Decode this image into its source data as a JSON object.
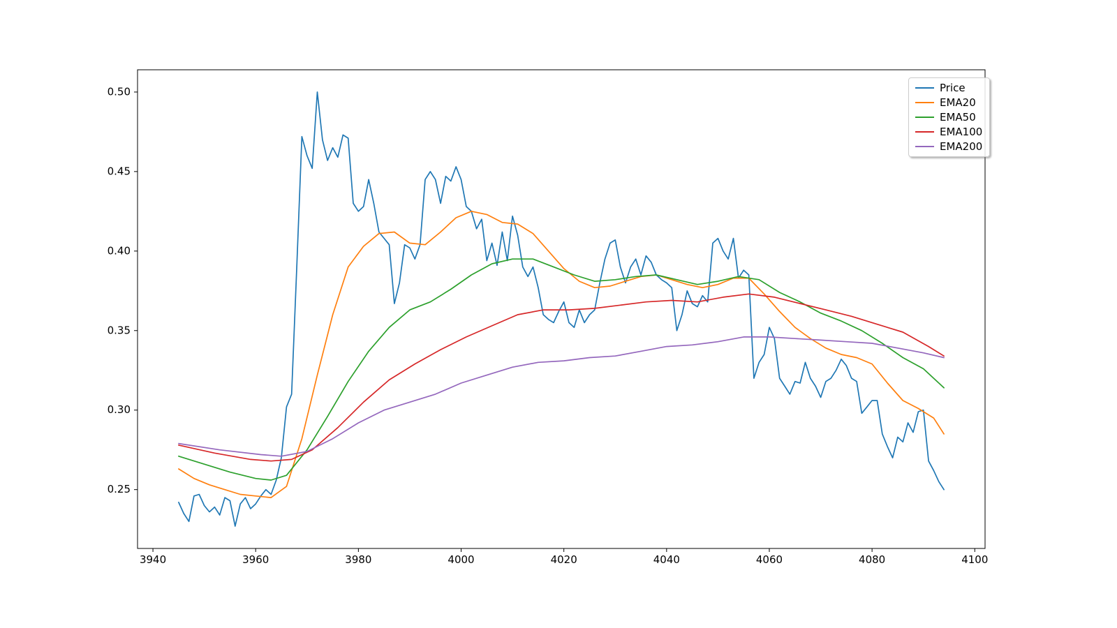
{
  "figure": {
    "background": "#ffffff"
  },
  "chart_data": {
    "type": "line",
    "title": "",
    "xlabel": "",
    "ylabel": "",
    "grid": false,
    "xlim": [
      3937,
      4102
    ],
    "ylim": [
      0.213,
      0.514
    ],
    "xticks": [
      3940,
      3960,
      3980,
      4000,
      4020,
      4040,
      4060,
      4080,
      4100
    ],
    "xtick_labels": [
      "3940",
      "3960",
      "3980",
      "4000",
      "4020",
      "4040",
      "4060",
      "4080",
      "4100"
    ],
    "yticks": [
      0.25,
      0.3,
      0.35,
      0.4,
      0.45,
      0.5
    ],
    "ytick_labels": [
      "0.25",
      "0.30",
      "0.35",
      "0.40",
      "0.45",
      "0.50"
    ],
    "legend": {
      "position": "upper right",
      "entries": [
        "Price",
        "EMA20",
        "EMA50",
        "EMA100",
        "EMA200"
      ]
    },
    "series": [
      {
        "name": "Price",
        "color": "#1f77b4",
        "x_start": 3945,
        "x_step": 1,
        "y": [
          0.242,
          0.235,
          0.23,
          0.246,
          0.247,
          0.24,
          0.236,
          0.239,
          0.234,
          0.245,
          0.243,
          0.227,
          0.241,
          0.245,
          0.238,
          0.241,
          0.246,
          0.25,
          0.247,
          0.256,
          0.27,
          0.302,
          0.31,
          0.39,
          0.472,
          0.46,
          0.452,
          0.5,
          0.47,
          0.457,
          0.465,
          0.459,
          0.473,
          0.471,
          0.43,
          0.425,
          0.428,
          0.445,
          0.43,
          0.412,
          0.408,
          0.404,
          0.367,
          0.38,
          0.404,
          0.402,
          0.395,
          0.404,
          0.445,
          0.45,
          0.445,
          0.43,
          0.447,
          0.444,
          0.453,
          0.445,
          0.428,
          0.425,
          0.414,
          0.42,
          0.394,
          0.405,
          0.391,
          0.412,
          0.394,
          0.422,
          0.41,
          0.39,
          0.384,
          0.39,
          0.377,
          0.36,
          0.357,
          0.355,
          0.362,
          0.368,
          0.355,
          0.352,
          0.363,
          0.355,
          0.36,
          0.363,
          0.38,
          0.395,
          0.405,
          0.407,
          0.39,
          0.38,
          0.39,
          0.395,
          0.385,
          0.397,
          0.393,
          0.385,
          0.382,
          0.38,
          0.377,
          0.35,
          0.36,
          0.375,
          0.367,
          0.365,
          0.372,
          0.368,
          0.405,
          0.408,
          0.4,
          0.395,
          0.408,
          0.383,
          0.388,
          0.385,
          0.32,
          0.33,
          0.335,
          0.352,
          0.345,
          0.32,
          0.315,
          0.31,
          0.318,
          0.317,
          0.33,
          0.32,
          0.315,
          0.308,
          0.318,
          0.32,
          0.325,
          0.332,
          0.328,
          0.32,
          0.318,
          0.298,
          0.302,
          0.306,
          0.306,
          0.285,
          0.277,
          0.27,
          0.283,
          0.28,
          0.292,
          0.286,
          0.299,
          0.3,
          0.268,
          0.262,
          0.255,
          0.25
        ]
      },
      {
        "name": "EMA20",
        "color": "#ff7f0e",
        "x": [
          3945,
          3948,
          3951,
          3954,
          3957,
          3960,
          3963,
          3966,
          3969,
          3972,
          3975,
          3978,
          3981,
          3984,
          3987,
          3990,
          3993,
          3996,
          3999,
          4002,
          4005,
          4008,
          4011,
          4014,
          4017,
          4020,
          4023,
          4026,
          4029,
          4032,
          4035,
          4038,
          4041,
          4044,
          4047,
          4050,
          4053,
          4056,
          4059,
          4062,
          4065,
          4068,
          4071,
          4074,
          4077,
          4080,
          4083,
          4086,
          4089,
          4092,
          4094
        ],
        "y": [
          0.263,
          0.257,
          0.253,
          0.25,
          0.247,
          0.246,
          0.245,
          0.252,
          0.282,
          0.322,
          0.36,
          0.39,
          0.403,
          0.411,
          0.412,
          0.405,
          0.404,
          0.412,
          0.421,
          0.425,
          0.423,
          0.418,
          0.417,
          0.411,
          0.4,
          0.389,
          0.381,
          0.377,
          0.378,
          0.381,
          0.384,
          0.385,
          0.382,
          0.379,
          0.377,
          0.379,
          0.383,
          0.383,
          0.373,
          0.362,
          0.352,
          0.345,
          0.339,
          0.335,
          0.333,
          0.329,
          0.317,
          0.306,
          0.301,
          0.295,
          0.285
        ]
      },
      {
        "name": "EMA50",
        "color": "#2ca02c",
        "x": [
          3945,
          3950,
          3955,
          3960,
          3963,
          3966,
          3970,
          3974,
          3978,
          3982,
          3986,
          3990,
          3994,
          3998,
          4002,
          4006,
          4010,
          4014,
          4018,
          4022,
          4026,
          4030,
          4034,
          4038,
          4042,
          4046,
          4050,
          4054,
          4058,
          4062,
          4066,
          4070,
          4074,
          4078,
          4082,
          4086,
          4090,
          4094
        ],
        "y": [
          0.271,
          0.266,
          0.261,
          0.257,
          0.256,
          0.259,
          0.275,
          0.296,
          0.318,
          0.337,
          0.352,
          0.363,
          0.368,
          0.376,
          0.385,
          0.392,
          0.395,
          0.395,
          0.39,
          0.385,
          0.381,
          0.382,
          0.384,
          0.385,
          0.382,
          0.379,
          0.381,
          0.384,
          0.382,
          0.374,
          0.368,
          0.361,
          0.356,
          0.35,
          0.342,
          0.333,
          0.326,
          0.314
        ]
      },
      {
        "name": "EMA100",
        "color": "#d62728",
        "x": [
          3945,
          3952,
          3959,
          3963,
          3967,
          3971,
          3976,
          3981,
          3986,
          3991,
          3996,
          4001,
          4006,
          4011,
          4016,
          4021,
          4026,
          4031,
          4036,
          4041,
          4046,
          4051,
          4056,
          4061,
          4066,
          4071,
          4076,
          4081,
          4086,
          4091,
          4094
        ],
        "y": [
          0.278,
          0.273,
          0.269,
          0.268,
          0.269,
          0.275,
          0.289,
          0.305,
          0.319,
          0.329,
          0.338,
          0.346,
          0.353,
          0.36,
          0.363,
          0.363,
          0.364,
          0.366,
          0.368,
          0.369,
          0.368,
          0.371,
          0.373,
          0.371,
          0.367,
          0.363,
          0.359,
          0.354,
          0.349,
          0.34,
          0.334
        ]
      },
      {
        "name": "EMA200",
        "color": "#9467bd",
        "x": [
          3945,
          3953,
          3961,
          3965,
          3970,
          3975,
          3980,
          3985,
          3990,
          3995,
          4000,
          4005,
          4010,
          4015,
          4020,
          4025,
          4030,
          4035,
          4040,
          4045,
          4050,
          4055,
          4060,
          4065,
          4070,
          4075,
          4080,
          4085,
          4090,
          4094
        ],
        "y": [
          0.279,
          0.275,
          0.272,
          0.271,
          0.274,
          0.282,
          0.292,
          0.3,
          0.305,
          0.31,
          0.317,
          0.322,
          0.327,
          0.33,
          0.331,
          0.333,
          0.334,
          0.337,
          0.34,
          0.341,
          0.343,
          0.346,
          0.346,
          0.345,
          0.344,
          0.343,
          0.342,
          0.339,
          0.336,
          0.333
        ]
      }
    ]
  }
}
